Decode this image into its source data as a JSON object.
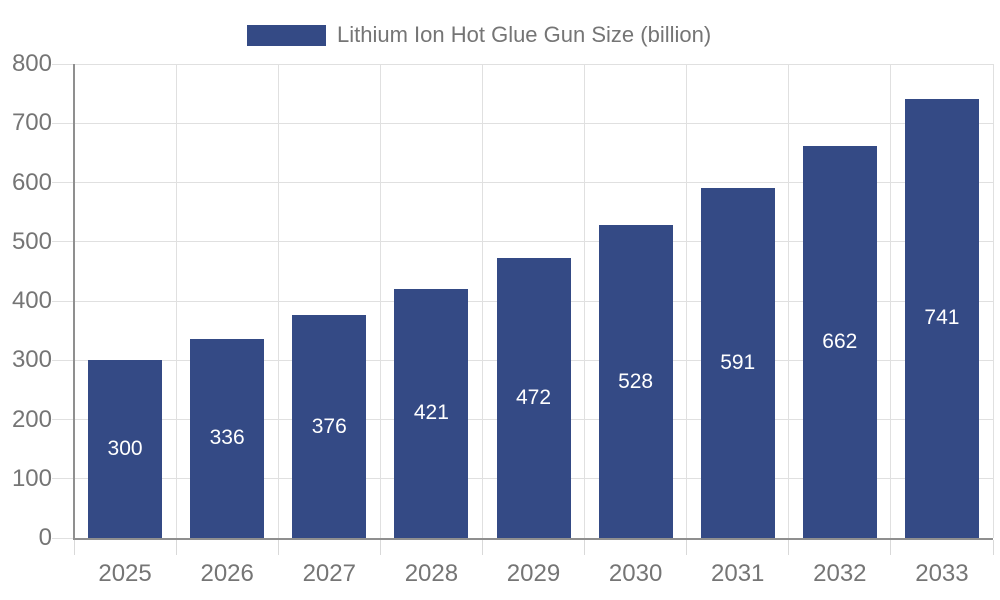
{
  "chart_data": {
    "type": "bar",
    "title": "Lithium Ion Hot Glue Gun Size (billion)",
    "categories": [
      "2025",
      "2026",
      "2027",
      "2028",
      "2029",
      "2030",
      "2031",
      "2032",
      "2033"
    ],
    "values": [
      300,
      336,
      376,
      421,
      472,
      528,
      591,
      662,
      741
    ],
    "xlabel": "",
    "ylabel": "",
    "ylim": [
      0,
      800
    ],
    "y_ticks": [
      0,
      100,
      200,
      300,
      400,
      500,
      600,
      700,
      800
    ],
    "grid": true,
    "legend_position": "top-center",
    "bar_labels_visible": true,
    "colors": {
      "bar": "#344a85",
      "bar_label": "#ffffff",
      "axis_line": "#8f8f8f",
      "grid_line": "#e0e0e0",
      "tick_mark": "#d9d9d9",
      "tick_label": "#757575",
      "legend_text": "#757575",
      "background": "#ffffff"
    }
  }
}
